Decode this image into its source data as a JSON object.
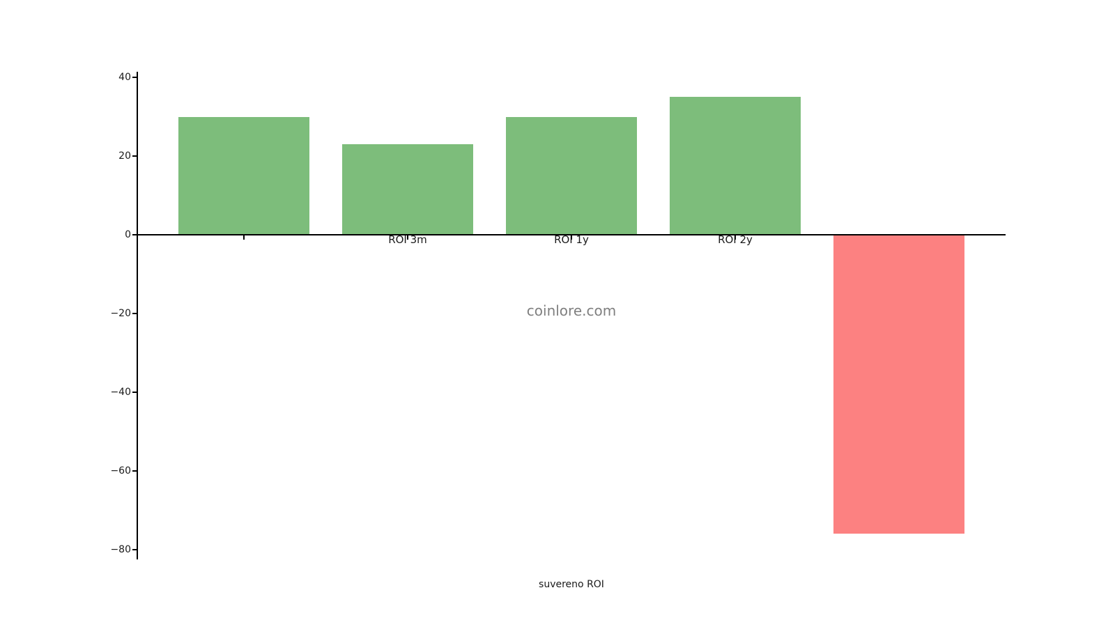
{
  "watermark": {
    "text": "coinlore.com",
    "color": "#7f7f7f"
  },
  "colors": {
    "positive_bar": "#7dbd7b",
    "negative_bar": "#fc8181",
    "axis": "#000000",
    "tick_label": "#1a1a1a"
  },
  "chart_data": {
    "type": "bar",
    "title": "",
    "xlabel": "suvereno ROI",
    "ylabel": "",
    "categories": [
      "",
      "ROI 3m",
      "ROI 1y",
      "ROI 2y",
      ""
    ],
    "values": [
      30,
      23,
      30,
      35,
      -76
    ],
    "bar_colors": [
      "positive",
      "positive",
      "positive",
      "positive",
      "negative"
    ],
    "yticks": [
      40,
      20,
      0,
      -20,
      -40,
      -60,
      -80
    ],
    "ylim": [
      -82,
      42
    ],
    "grid": false,
    "legend": false
  }
}
